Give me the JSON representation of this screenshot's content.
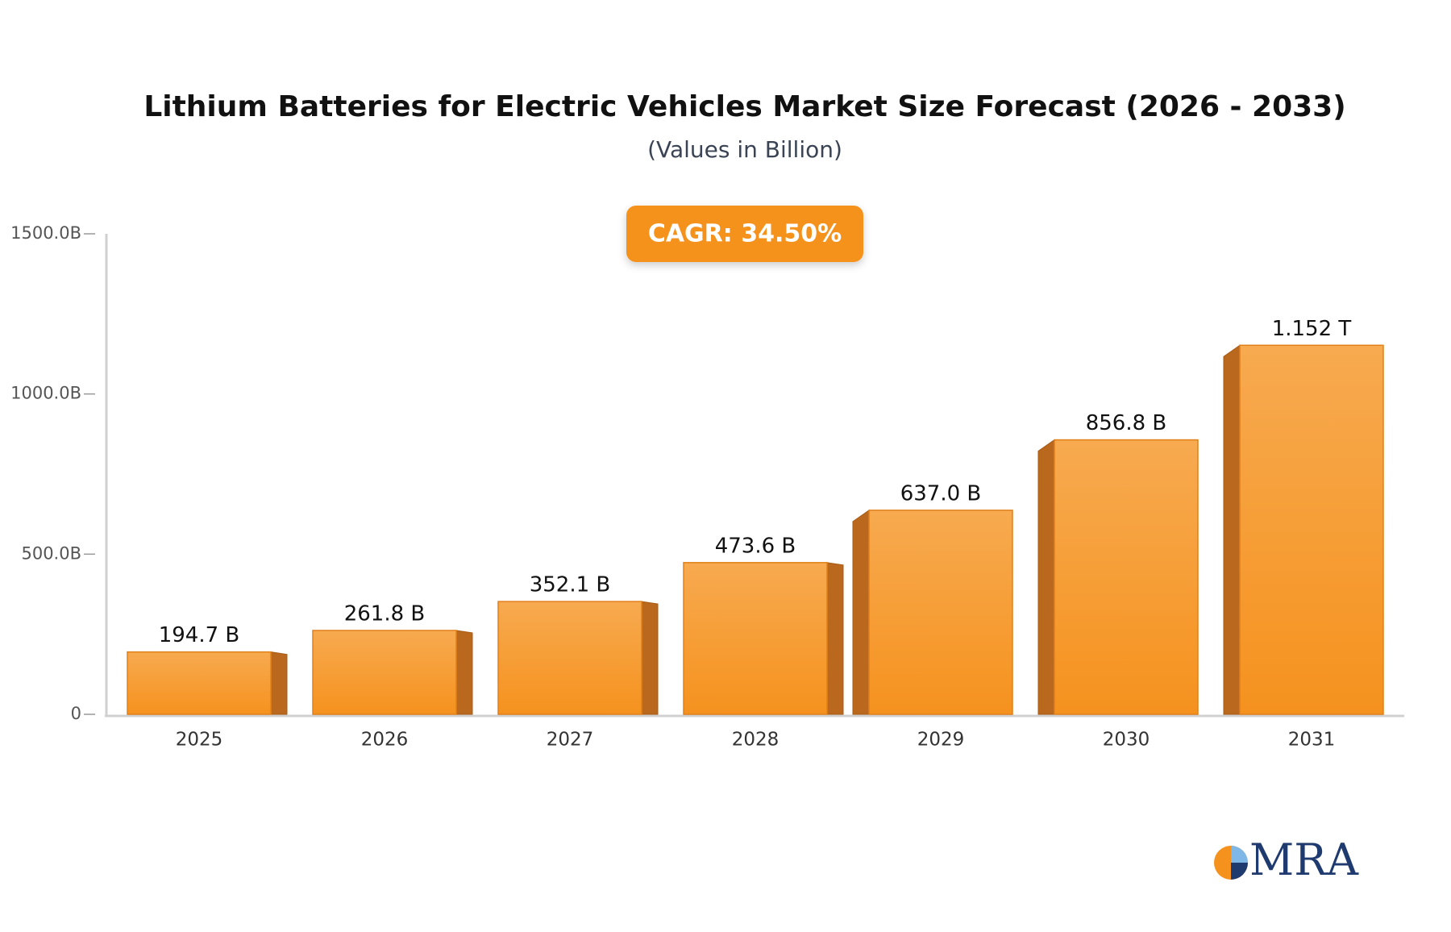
{
  "chart_data": {
    "type": "bar",
    "title": "Lithium Batteries for Electric Vehicles Market Size Forecast (2026 - 2033)",
    "subtitle": "(Values in Billion)",
    "annotation": "CAGR: 34.50%",
    "logo": "MRA",
    "categories": [
      "2025",
      "2026",
      "2027",
      "2028",
      "2029",
      "2030",
      "2031"
    ],
    "values": [
      194.7,
      261.8,
      352.1,
      473.6,
      637.0,
      856.8,
      1152
    ],
    "value_labels": [
      "194.7 B",
      "261.8 B",
      "352.1 B",
      "473.6 B",
      "637.0 B",
      "856.8 B",
      "1.152 T"
    ],
    "color": "#f5921e",
    "ylim": [
      0,
      1500
    ],
    "yticks": [
      0,
      {
        "value": 500,
        "label": "500.0B"
      },
      {
        "value": 1000,
        "label": "1000.0B"
      },
      {
        "value": 1500,
        "label": "1500.0B"
      }
    ],
    "grid": false
  }
}
